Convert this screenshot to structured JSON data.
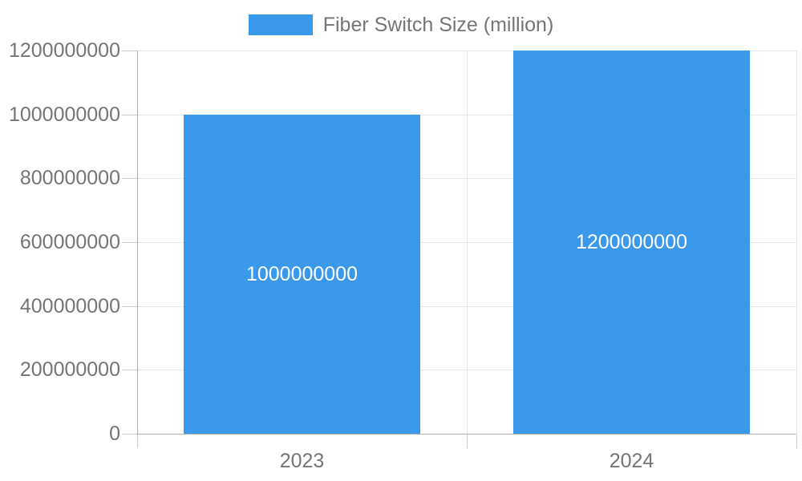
{
  "chart": {
    "colors": {
      "bar": "#3B99EC",
      "text": "#757575",
      "grid": "#E6E6E6",
      "axis": "#AEAEAE",
      "tick": "#CCCCCC",
      "value_label": "#FFFFFF",
      "background": "#FFFFFF"
    }
  },
  "chart_data": {
    "type": "bar",
    "title": "",
    "xlabel": "",
    "ylabel": "",
    "categories": [
      "2023",
      "2024"
    ],
    "series": [
      {
        "name": "Fiber Switch Size (million)",
        "values": [
          1000000000,
          1200000000
        ]
      }
    ],
    "data_labels": [
      "1000000000",
      "1200000000"
    ],
    "ylim": [
      0,
      1200000000
    ],
    "yticks": [
      0,
      200000000,
      400000000,
      600000000,
      800000000,
      1000000000,
      1200000000
    ],
    "ytick_labels": [
      "0",
      "200000000",
      "400000000",
      "600000000",
      "800000000",
      "1000000000",
      "1200000000"
    ],
    "grid": true,
    "legend_position": "top-center"
  }
}
